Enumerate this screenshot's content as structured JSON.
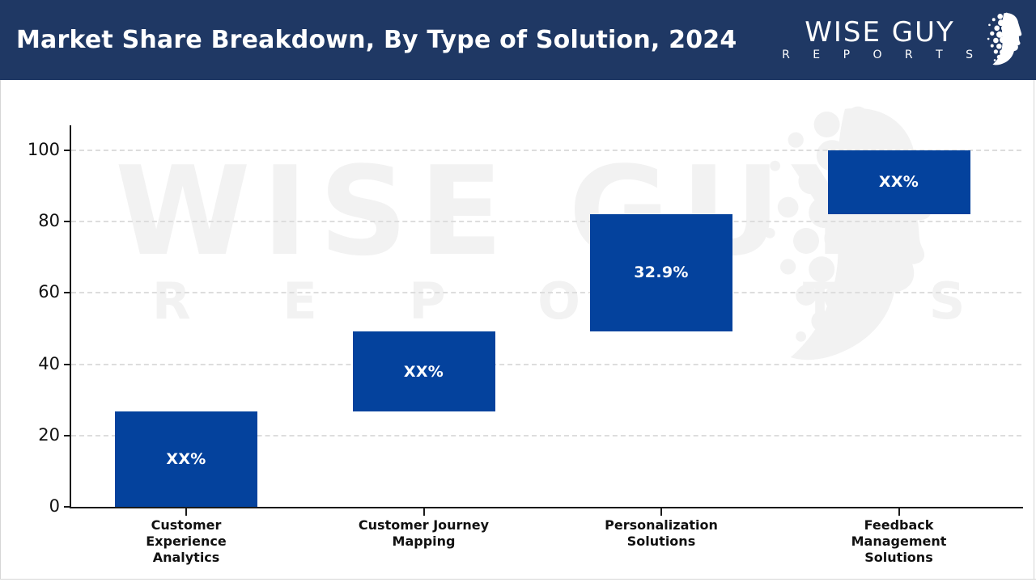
{
  "header": {
    "title": "Market Share Breakdown, By Type of Solution, 2024",
    "bg_color": "#1f3864",
    "logo": {
      "name": "WISE GUY",
      "sub": "R E P O R T S"
    }
  },
  "watermark": {
    "line1": "WISE GUY",
    "line2": "R E P O R T S"
  },
  "chart_data": {
    "type": "bar",
    "subtype": "floating-segment-waterfall",
    "title": "Market Share Breakdown, By Type of Solution, 2024",
    "categories": [
      "Customer Experience Analytics",
      "Customer Journey Mapping",
      "Personalization Solutions",
      "Feedback Management Solutions"
    ],
    "category_lines": [
      [
        "Customer",
        "Experience",
        "Analytics"
      ],
      [
        "Customer Journey",
        "Mapping"
      ],
      [
        "Personalization",
        "Solutions"
      ],
      [
        "Feedback",
        "Management",
        "Solutions"
      ]
    ],
    "segments": [
      {
        "start": 0,
        "end": 26.7,
        "value": 26.7,
        "label": "XX%"
      },
      {
        "start": 26.7,
        "end": 49.2,
        "value": 22.5,
        "label": "XX%"
      },
      {
        "start": 49.2,
        "end": 82.1,
        "value": 32.9,
        "label": "32.9%"
      },
      {
        "start": 82.1,
        "end": 100.0,
        "value": 17.9,
        "label": "XX%"
      }
    ],
    "yticks": [
      0,
      20,
      40,
      60,
      80,
      100
    ],
    "ylim": [
      0,
      107
    ],
    "xlabel": "",
    "ylabel": "",
    "grid": "horizontal dashed",
    "legend": "none",
    "bar_color": "#04429d",
    "bar_label_color": "#ffffff"
  }
}
